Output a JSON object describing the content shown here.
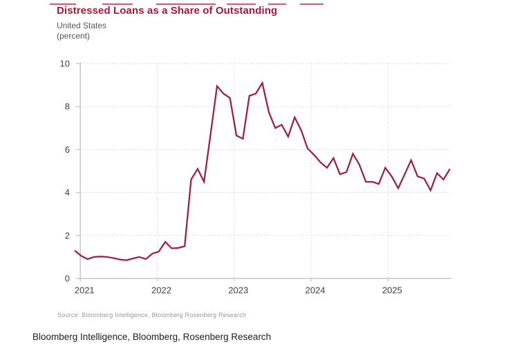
{
  "page": {
    "title": "Distressed Loans as a Share of Outstanding",
    "subtitle1": "United States",
    "subtitle2": "(percent)",
    "source_note": "Source: Bloomberg Intelligence, Bloomberg Rosenberg Research",
    "caption": "Bloomberg Intelligence, Bloomberg, Rosenberg Research"
  },
  "colors": {
    "title": "#a5173a",
    "line": "#9d2144",
    "grid": "#cfcfcf",
    "axis": "#c6c6c6",
    "tick_label": "#404040",
    "subtitle": "#56565a",
    "source": "#999999",
    "caption": "#1c1c1c"
  },
  "chart_data": {
    "type": "line",
    "title": "Distressed Loans as a Share of Outstanding",
    "region": "United States",
    "unit": "percent",
    "grid": "dotted",
    "legend": "none",
    "ylim": [
      0,
      10
    ],
    "y_ticks": [
      0,
      2,
      4,
      6,
      8,
      10
    ],
    "x_tick_labels": [
      "2021",
      "2022",
      "2023",
      "2024",
      "2025"
    ],
    "series": [
      {
        "name": "Distressed loans as a share of outstanding",
        "frequency": "monthly",
        "start": "2021-01",
        "end": "2025-11",
        "values": [
          1.3,
          1.05,
          0.9,
          1.0,
          1.02,
          1.0,
          0.95,
          0.88,
          0.85,
          0.93,
          1.0,
          0.9,
          1.15,
          1.25,
          1.7,
          1.4,
          1.42,
          1.5,
          4.6,
          5.1,
          4.5,
          6.7,
          8.95,
          8.6,
          8.4,
          6.65,
          6.5,
          8.5,
          8.6,
          9.1,
          7.75,
          7.0,
          7.15,
          6.6,
          7.5,
          6.9,
          6.05,
          5.75,
          5.4,
          5.15,
          5.6,
          4.85,
          4.95,
          5.8,
          5.3,
          4.5,
          4.5,
          4.4,
          5.15,
          4.75,
          4.2,
          4.85,
          5.5,
          4.75,
          4.65,
          4.1,
          4.9,
          4.6,
          5.1
        ]
      }
    ]
  }
}
